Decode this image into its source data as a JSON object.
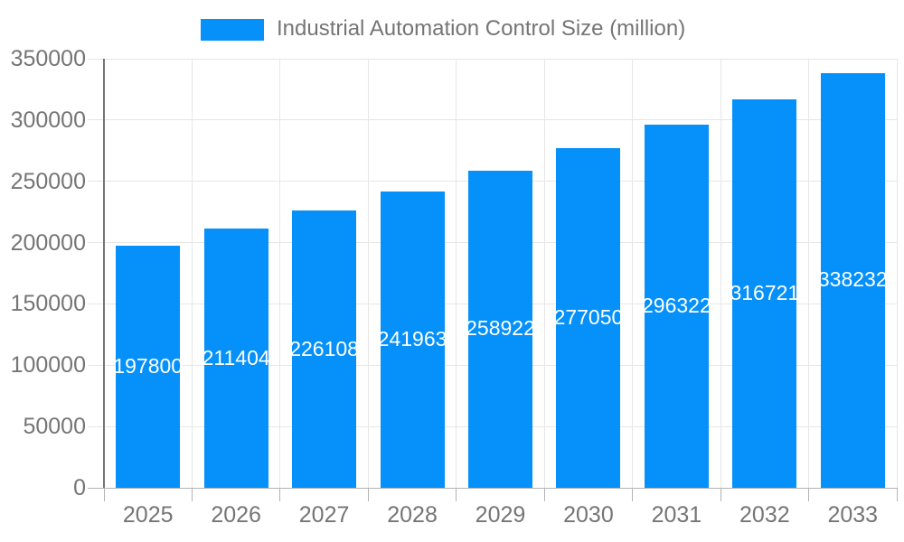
{
  "chart_data": {
    "type": "bar",
    "title": "Industrial Automation Control Size (million)",
    "categories": [
      "2025",
      "2026",
      "2027",
      "2028",
      "2029",
      "2030",
      "2031",
      "2032",
      "2033"
    ],
    "values": [
      197800,
      211404,
      226108,
      241963,
      258922,
      277050,
      296322,
      316721,
      338232
    ],
    "series": [
      {
        "name": "Industrial Automation Control Size (million)",
        "values": [
          197800,
          211404,
          226108,
          241963,
          258922,
          277050,
          296322,
          316721,
          338232
        ]
      }
    ],
    "xlabel": "",
    "ylabel": "",
    "ylim": [
      0,
      350000
    ],
    "ytick_step": 50000,
    "ytick_labels": [
      "0",
      "50000",
      "100000",
      "150000",
      "200000",
      "250000",
      "300000",
      "350000"
    ],
    "grid": true,
    "legend_position": "top",
    "bar_labels_inside": true,
    "colors": {
      "bar": "#0590FA",
      "bar_label": "#ffffff",
      "axis_text": "#757575",
      "legend_text": "#757575",
      "gridline": "#e6e6e6",
      "zero_line": "#b3b3b3",
      "axis_line": "#757575",
      "background": "#ffffff"
    }
  }
}
